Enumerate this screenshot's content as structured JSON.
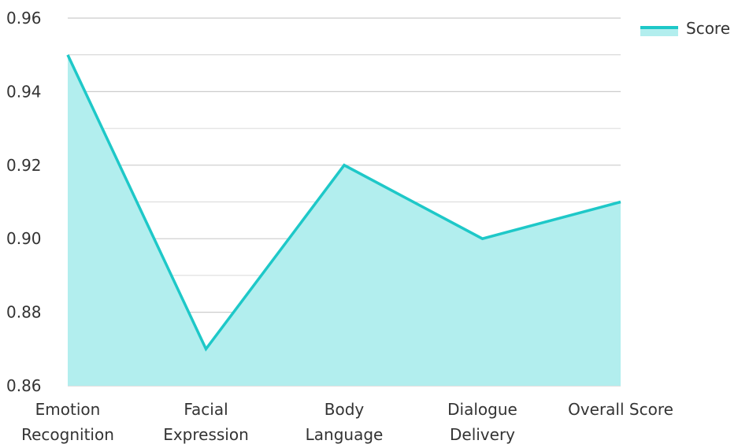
{
  "chart_data": {
    "type": "area",
    "categories": [
      [
        "Emotion",
        "Recognition"
      ],
      [
        "Facial",
        "Expression"
      ],
      [
        "Body",
        "Language"
      ],
      [
        "Dialogue",
        "Delivery"
      ],
      [
        "Overall Score"
      ]
    ],
    "series": [
      {
        "name": "Score",
        "values": [
          0.95,
          0.87,
          0.92,
          0.9,
          0.91
        ]
      }
    ],
    "y_ticks": [
      "0.96",
      "0.94",
      "0.92",
      "0.90",
      "0.88",
      "0.86"
    ],
    "ylim": [
      0.86,
      0.96
    ],
    "grid": true,
    "legend_position": "top-right",
    "colors": {
      "line": "#1ec8c8",
      "fill": "#b2eeee",
      "grid": "#cccccc",
      "text": "#333333"
    }
  }
}
